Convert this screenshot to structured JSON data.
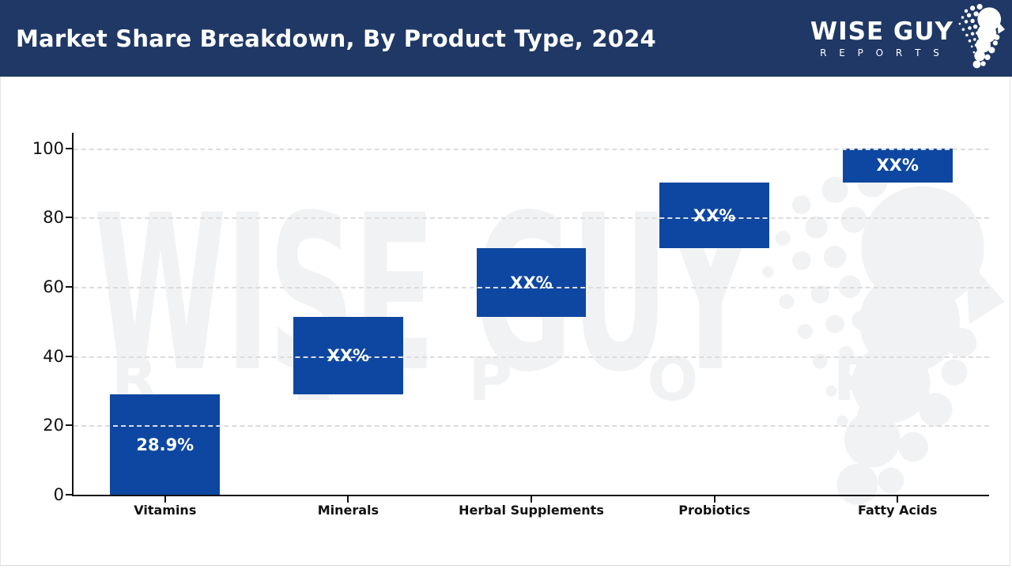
{
  "header": {
    "title": "Market Share Breakdown, By Product Type, 2024",
    "bg_color": "#1f3865",
    "logo": {
      "line1": "WISE GUY",
      "line2": "R E P O R T S",
      "icon": "dotted-face-profile-icon",
      "color": "#ffffff"
    }
  },
  "watermark": {
    "line1": "WISE GUY",
    "line2": "R E P O R T S",
    "color": "#f1f2f4"
  },
  "chart_data": {
    "type": "bar",
    "subtype": "waterfall",
    "title": "Market Share Breakdown, By Product Type, 2024",
    "xlabel": "",
    "ylabel": "",
    "categories": [
      "Vitamins",
      "Minerals",
      "Herbal Supplements",
      "Probiotics",
      "Fatty Acids"
    ],
    "bars": [
      {
        "category": "Vitamins",
        "start": 0,
        "end": 28.9,
        "delta": 28.9,
        "label": "28.9%"
      },
      {
        "category": "Minerals",
        "start": 28.9,
        "end": 51.4,
        "delta": 22.5,
        "label": "XX%"
      },
      {
        "category": "Herbal Supplements",
        "start": 51.4,
        "end": 71.1,
        "delta": 19.7,
        "label": "XX%"
      },
      {
        "category": "Probiotics",
        "start": 71.1,
        "end": 90.2,
        "delta": 19.1,
        "label": "XX%"
      },
      {
        "category": "Fatty Acids",
        "start": 90.2,
        "end": 100.0,
        "delta": 9.8,
        "label": "XX%"
      }
    ],
    "yticks": [
      0,
      20,
      40,
      60,
      80,
      100
    ],
    "ylim": [
      0,
      104.5
    ],
    "grid": "horizontal-dashed",
    "gridline_color": "#dcdcdc",
    "bar_color": "#0d47a1",
    "bar_label_color": "#ffffff",
    "axis_color": "#111111",
    "legend": "none"
  }
}
